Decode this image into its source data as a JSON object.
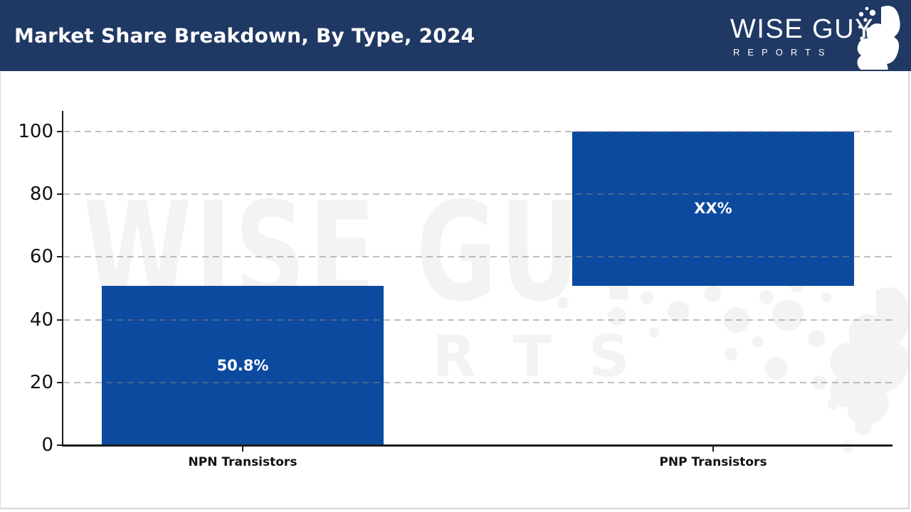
{
  "header": {
    "title": "Market Share Breakdown, By Type, 2024"
  },
  "logo": {
    "name": "WISE GUY",
    "subtitle": "REPORTS"
  },
  "watermark": {
    "line1": "WISE GUY",
    "line2": "R T S"
  },
  "colors": {
    "header_bg": "#203864",
    "bar_blue": "#0c4aa0",
    "watermark": "#f3f3f3",
    "axis": "#1c1c1c"
  },
  "chart_data": {
    "type": "bar",
    "subtype": "waterfall-floating-bars",
    "title": "Market Share Breakdown, By Type, 2024",
    "categories": [
      "NPN Transistors",
      "PNP Transistors"
    ],
    "bars": [
      {
        "category": "NPN Transistors",
        "from": 0,
        "to": 50.8,
        "label": "50.8%"
      },
      {
        "category": "PNP Transistors",
        "from": 50.8,
        "to": 100,
        "label": "XX%"
      }
    ],
    "xlabel": "",
    "ylabel": "",
    "ylim": [
      0,
      107
    ],
    "yticks": [
      0,
      20,
      40,
      60,
      80,
      100
    ],
    "grid": "horizontal-dashed",
    "legend": "none",
    "bar_color": "#0c4aa0",
    "bar_label_color": "#ffffff"
  }
}
